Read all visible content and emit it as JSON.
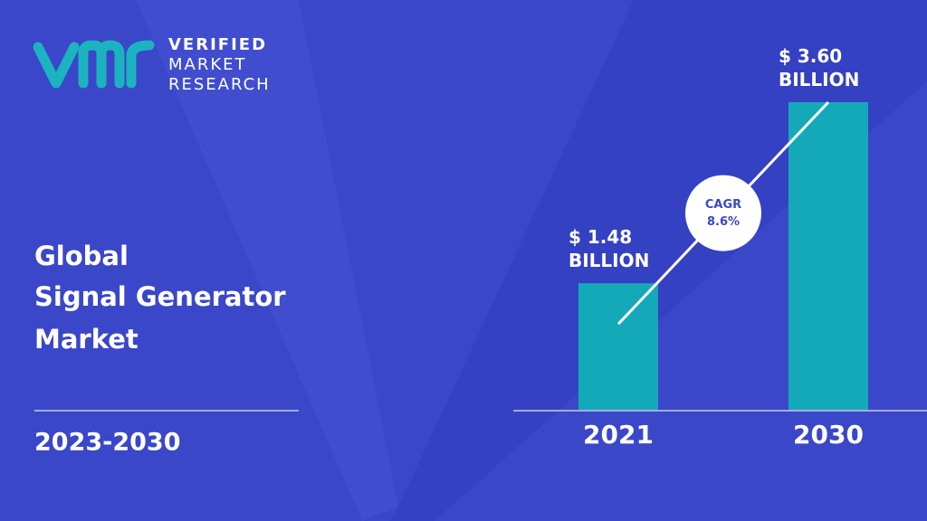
{
  "logo": {
    "lines": [
      "VERIFIED",
      "MARKET",
      "RESEARCH"
    ]
  },
  "title_lines": [
    "Global",
    "Signal Generator",
    "Market"
  ],
  "period": "2023-2030",
  "chart_data": {
    "type": "bar",
    "categories": [
      "2021",
      "2030"
    ],
    "values": [
      1.48,
      3.6
    ],
    "value_labels": [
      "$ 1.48 BILLION",
      "$ 3.60 BILLION"
    ],
    "color": "#14a9b8",
    "annotation": {
      "label": "CAGR",
      "value": "8.6%"
    }
  }
}
